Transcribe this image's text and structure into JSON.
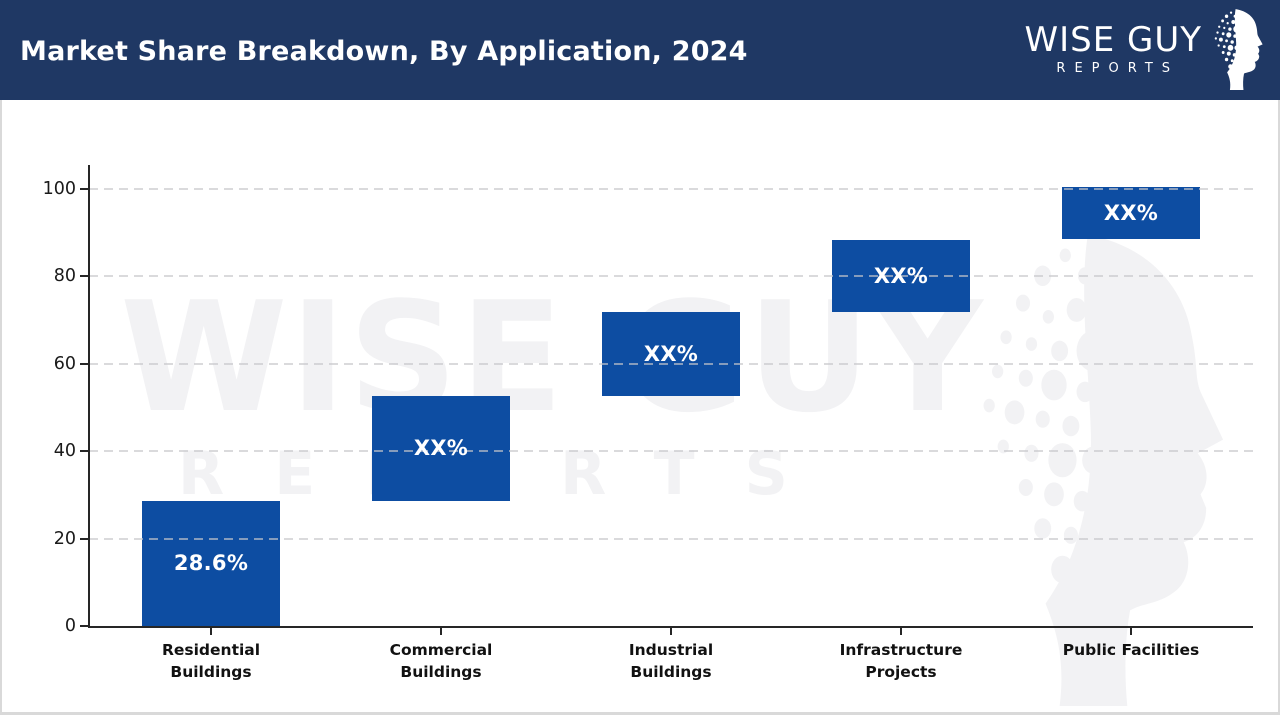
{
  "header": {
    "title": "Market Share Breakdown, By Application, 2024",
    "background": "#1f3864",
    "logo": {
      "line1": "WISE GUY",
      "line2": "REPORTS"
    }
  },
  "watermark": {
    "line1": "WISE GUY",
    "line2": "REPORTS"
  },
  "chart_data": {
    "type": "bar",
    "subtype": "floating-waterfall",
    "title": "Market Share Breakdown, By Application, 2024",
    "xlabel": "",
    "ylabel": "",
    "ylim": [
      0,
      105
    ],
    "y_ticks": [
      0,
      20,
      40,
      60,
      80,
      100
    ],
    "grid": "dashed-horizontal",
    "legend": "none",
    "bar_color": "#0d4da2",
    "bar_label_color": "#ffffff",
    "axis_color": "#262626",
    "categories": [
      "Residential Buildings",
      "Commercial Buildings",
      "Industrial Buildings",
      "Infrastructure Projects",
      "Public Facilities"
    ],
    "category_lines": [
      [
        "Residential",
        "Buildings"
      ],
      [
        "Commercial",
        "Buildings"
      ],
      [
        "Industrial",
        "Buildings"
      ],
      [
        "Infrastructure",
        "Projects"
      ],
      [
        "Public Facilities"
      ]
    ],
    "segments": [
      {
        "category": "Residential Buildings",
        "start": 0,
        "end": 28.6,
        "label": "28.6%"
      },
      {
        "category": "Commercial Buildings",
        "start": 28.6,
        "end": 52.6,
        "label": "XX%"
      },
      {
        "category": "Industrial Buildings",
        "start": 52.6,
        "end": 71.8,
        "label": "XX%"
      },
      {
        "category": "Infrastructure Projects",
        "start": 71.8,
        "end": 88.2,
        "label": "XX%"
      },
      {
        "category": "Public Facilities",
        "start": 88.4,
        "end": 100.3,
        "label": "XX%"
      }
    ]
  }
}
